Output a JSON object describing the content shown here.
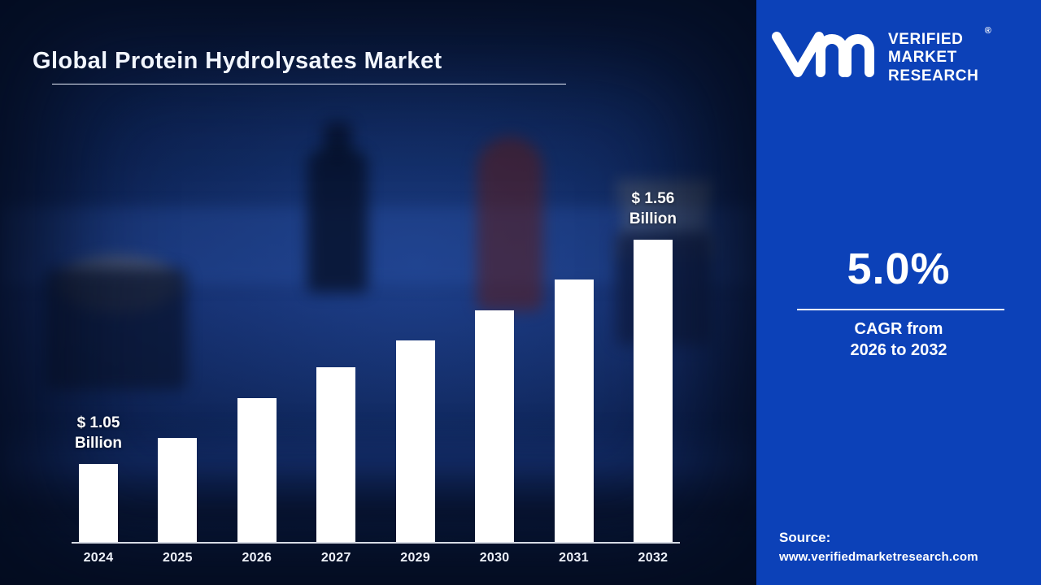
{
  "header": {
    "title": "Global Protein Hydrolysates Market"
  },
  "chart_data": {
    "type": "bar",
    "title": "Global Protein Hydrolysates Market",
    "unit": "USD Billion",
    "categories": [
      "2024",
      "2025",
      "2026",
      "2027",
      "2029",
      "2030",
      "2031",
      "2032"
    ],
    "values": [
      1.05,
      1.11,
      1.2,
      1.27,
      1.33,
      1.4,
      1.47,
      1.56
    ],
    "bar_color": "#ffffff",
    "annotations": [
      {
        "index": 0,
        "amount": "$ 1.05",
        "unit": "Billion"
      },
      {
        "index": 7,
        "amount": "$ 1.56",
        "unit": "Billion"
      }
    ],
    "xlabel": "",
    "ylabel": "",
    "legend": false,
    "gridlines": false,
    "y_axis_visible": false
  },
  "side_panel": {
    "brand": {
      "logo": "vmr-monogram-icon",
      "name_lines": [
        "VERIFIED",
        "MARKET",
        "RESEARCH"
      ],
      "registered_mark": "®"
    },
    "cagr": {
      "value": "5.0%",
      "caption_line1": "CAGR from",
      "caption_line2": "2026 to 2032"
    },
    "source": {
      "label": "Source:",
      "url": "www.verifiedmarketresearch.com"
    }
  },
  "colors": {
    "panel_blue": "#0c41b8",
    "background_navy": "#0a1a3c",
    "bar_white": "#ffffff",
    "text_white": "#ffffff"
  }
}
